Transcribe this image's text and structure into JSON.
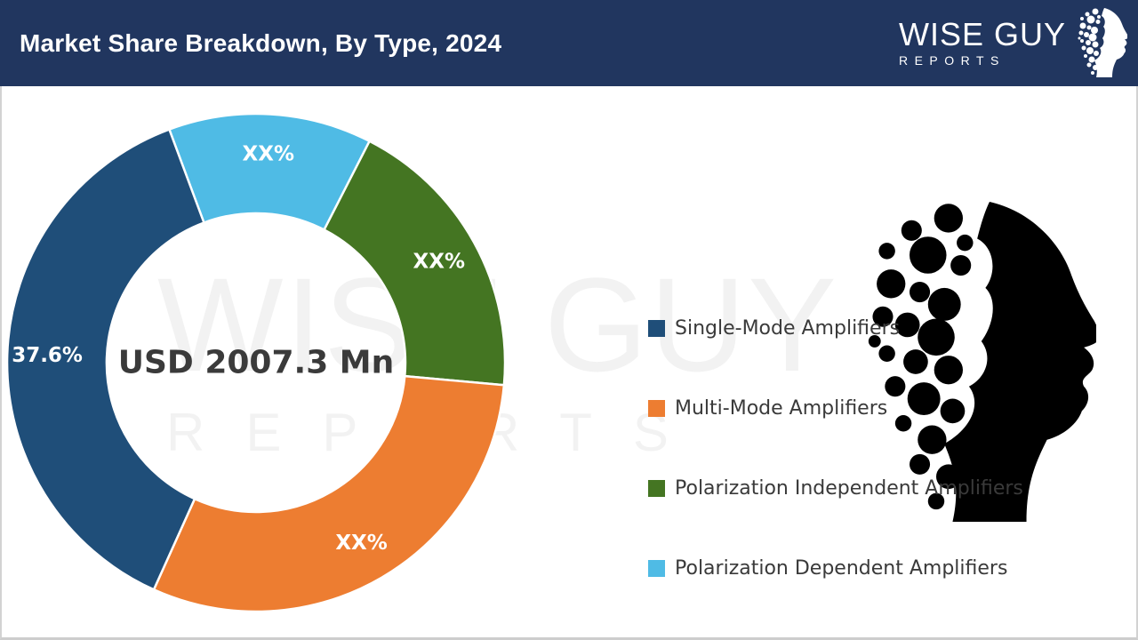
{
  "header": {
    "title": "Market Share Breakdown, By Type, 2024",
    "logo": {
      "line1": "WISE GUY",
      "line2": "REPORTS"
    }
  },
  "watermark": {
    "line1": "WISE GUY",
    "line2": "REPORTS"
  },
  "chart_data": {
    "type": "pie",
    "subtype": "donut",
    "title": "Market Share Breakdown, By Type, 2024",
    "center_label": "USD 2007.3 Mn",
    "legend_position": "right",
    "start_angle_deg": -20.4,
    "direction": "clockwise-from-last-slice",
    "slices": [
      {
        "name": "Single-Mode Amplifiers",
        "label": "37.6%",
        "value_pct": 37.6,
        "color": "#1f4e79"
      },
      {
        "name": "Multi-Mode Amplifiers",
        "label": "XX%",
        "value_pct": 30.3,
        "color": "#ed7d31"
      },
      {
        "name": "Polarization Independent Amplifiers",
        "label": "XX%",
        "value_pct": 18.9,
        "color": "#447522"
      },
      {
        "name": "Polarization Dependent Amplifiers",
        "label": "XX%",
        "value_pct": 13.2,
        "color": "#4fbbe5"
      }
    ]
  },
  "colors": {
    "header_bg": "#21365f",
    "text_dark": "#3a3a3a",
    "border": "#d2d2d2",
    "slice_gap": "#ffffff"
  }
}
